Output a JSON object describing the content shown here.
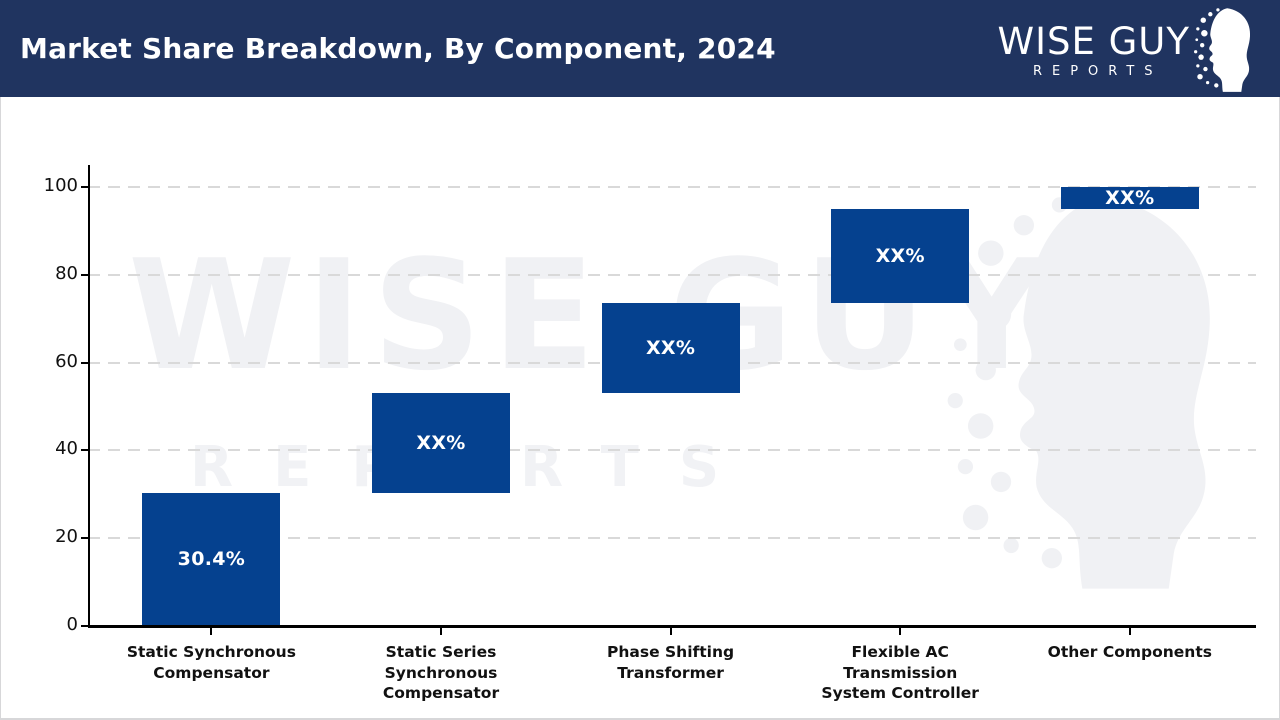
{
  "header": {
    "title": "Market Share Breakdown, By Component, 2024",
    "logo": {
      "brand_top": "WISE GUY",
      "brand_bottom": "REPORTS"
    }
  },
  "watermark": {
    "brand_top": "WISE GUY",
    "brand_bottom": "REPORTS"
  },
  "chart_data": {
    "type": "bar",
    "subtype": "waterfall-stacked-segments",
    "title": "Market Share Breakdown, By Component, 2024",
    "categories": [
      "Static Synchronous\nCompensator",
      "Static Series\nSynchronous\nCompensator",
      "Phase Shifting\nTransformer",
      "Flexible AC\nTransmission\nSystem Controller",
      "Other Components"
    ],
    "values": [
      30.4,
      22.6,
      20.5,
      21.5,
      5.0
    ],
    "cumulative_start": [
      0,
      30.4,
      53,
      73.5,
      95
    ],
    "cumulative_end": [
      30.4,
      53,
      73.5,
      95,
      100
    ],
    "bar_labels": [
      "30.4%",
      "XX%",
      "XX%",
      "XX%",
      "XX%"
    ],
    "xlabel": "",
    "ylabel": "",
    "ylim": [
      0,
      105
    ],
    "yticks": [
      0,
      20,
      40,
      60,
      80,
      100
    ],
    "grid": "horizontal-dashed",
    "legend": "none"
  },
  "colors": {
    "header_bg": "#203460",
    "bar": "#05418f",
    "bar_label": "#ffffff",
    "grid": "#d9d9d9",
    "axis": "#000000",
    "tick_text": "#111111",
    "watermark": "#f0f1f4"
  }
}
